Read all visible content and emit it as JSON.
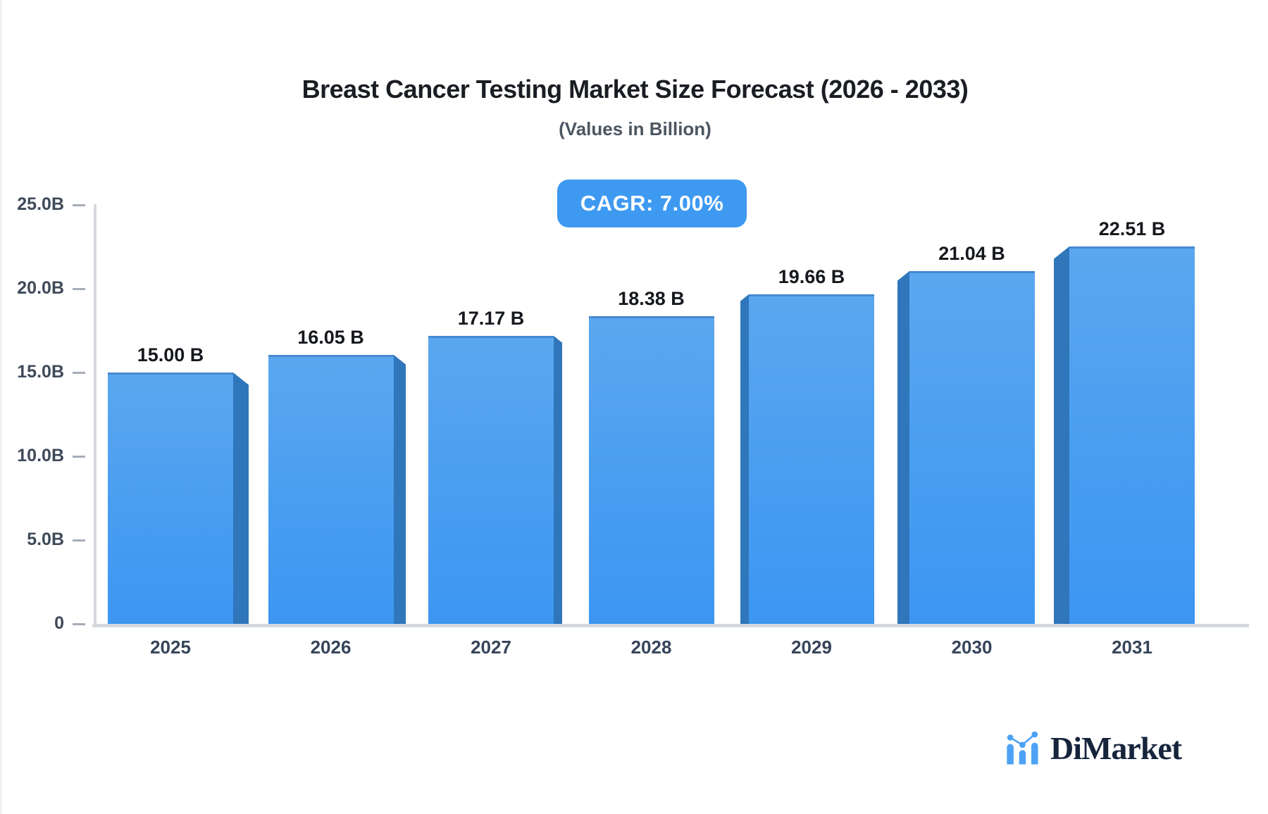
{
  "chart_data": {
    "type": "bar",
    "title": "Breast Cancer Testing Market Size Forecast (2026 - 2033)",
    "subtitle": "(Values in Billion)",
    "annotation_badge": "CAGR: 7.00%",
    "cagr": "7.00%",
    "categories": [
      "2025",
      "2026",
      "2027",
      "2028",
      "2029",
      "2030",
      "2031"
    ],
    "values": [
      15.0,
      16.05,
      17.17,
      18.38,
      19.66,
      21.04,
      22.51
    ],
    "value_labels": [
      "15.00 B",
      "16.05 B",
      "17.17 B",
      "18.38 B",
      "19.66 B",
      "21.04 B",
      "22.51 B"
    ],
    "unit": "Billion",
    "y_axis": {
      "ticks": [
        "25.0B",
        "20.0B",
        "15.0B",
        "10.0B",
        "5.0B",
        "0"
      ],
      "tick_values": [
        25,
        20,
        15,
        10,
        5,
        0
      ],
      "range": [
        0,
        25
      ]
    },
    "grid": false,
    "legend": false
  },
  "branding": {
    "logo_text": "DiMarket",
    "logo_icon": "bar-line-chart-icon"
  },
  "colors": {
    "bar_face_top": "#5aa7ef",
    "bar_face_bottom": "#3c96f2",
    "bar_side": "#2f76ba",
    "bar_top_edge": "#4689d2",
    "badge_bg": "#3e99f1",
    "badge_text": "#ffffff",
    "axis_line": "#d5d9de",
    "tick_mark": "#a6adb8",
    "tick_text": "#3e4a59",
    "year_text": "#36445a",
    "value_text": "#15181d",
    "title_text": "#1a1d23",
    "subtitle_text": "#4c5662",
    "logo_text_color": "#16243c",
    "logo_icon_color": "#4da2f5"
  }
}
